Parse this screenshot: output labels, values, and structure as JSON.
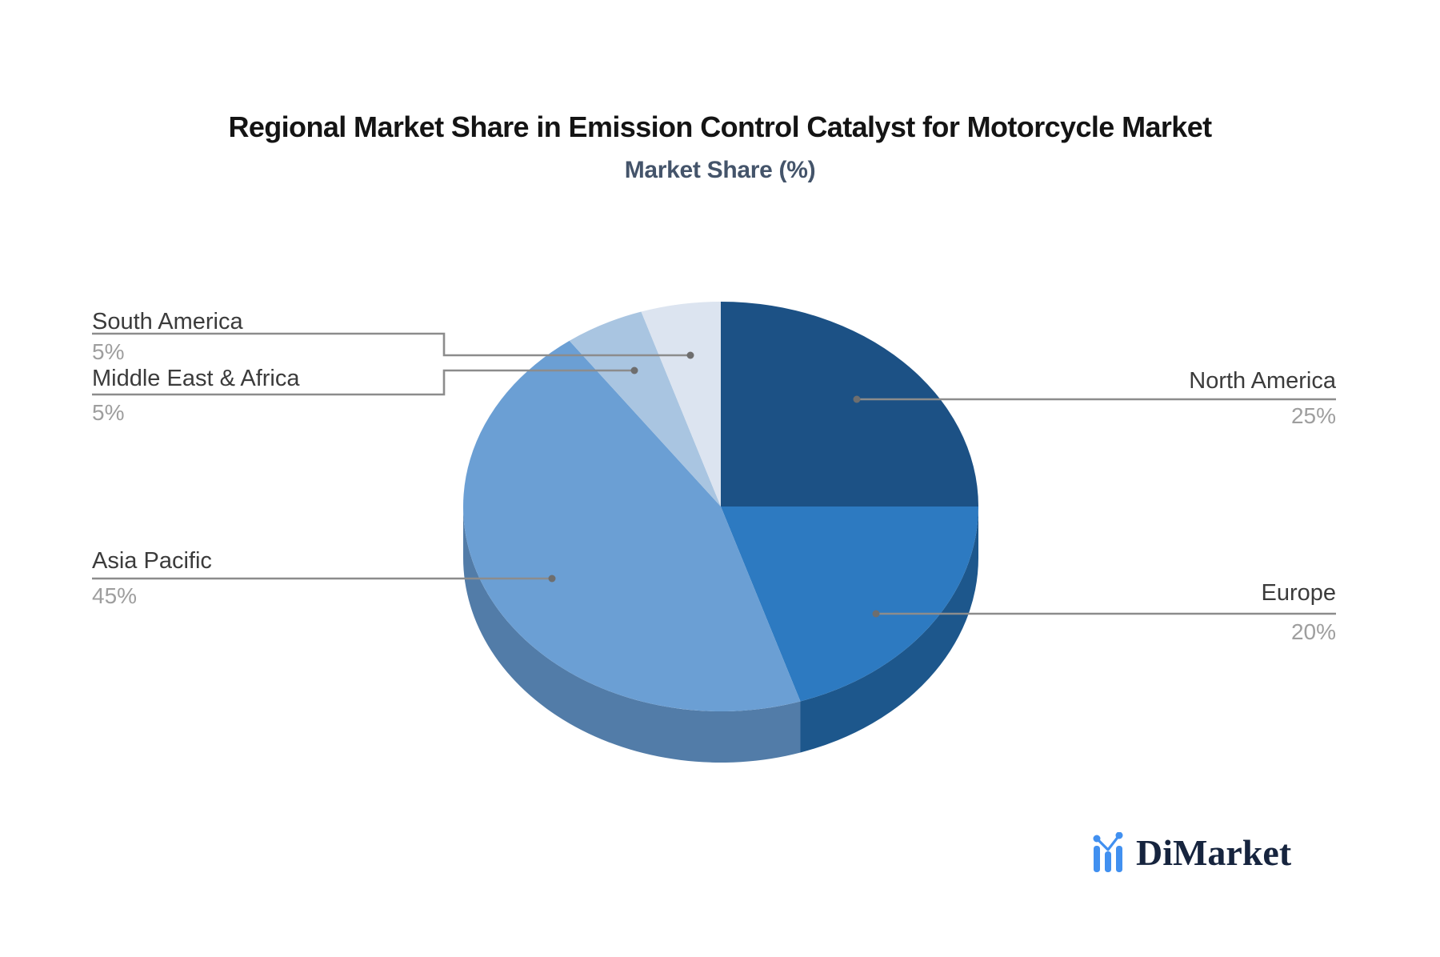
{
  "chart_data": {
    "type": "pie",
    "title": "Regional Market Share in Emission Control Catalyst for Motorcycle Market",
    "subtitle": "Market Share (%)",
    "unit": "%",
    "start_angle_deg": 0,
    "clockwise": true,
    "style": "3d-pie-with-callout-labels",
    "legend_position": "none",
    "categories": [
      "North America",
      "Europe",
      "Asia Pacific",
      "Middle East & Africa",
      "South America"
    ],
    "values": [
      25,
      20,
      45,
      5,
      5
    ],
    "slices": [
      {
        "label": "North America",
        "value": 25,
        "pct_label": "25%",
        "color": "#1c5185",
        "label_side": "right"
      },
      {
        "label": "Europe",
        "value": 20,
        "pct_label": "20%",
        "color": "#2d7ac1",
        "side_color": "#1d578c",
        "label_side": "right"
      },
      {
        "label": "Asia Pacific",
        "value": 45,
        "pct_label": "45%",
        "color": "#6b9fd4",
        "side_color": "#527ca8",
        "label_side": "left"
      },
      {
        "label": "Middle East & Africa",
        "value": 5,
        "pct_label": "5%",
        "color": "#a9c5e1",
        "label_side": "left"
      },
      {
        "label": "South America",
        "value": 5,
        "pct_label": "5%",
        "color": "#dce4f0",
        "label_side": "left"
      }
    ]
  },
  "connector_color": "#8c8c8c",
  "dot_color": "#6e6e6e",
  "logo": {
    "text": "DiMarket",
    "icon": "bar-line-chart-icon",
    "icon_color": "#4190f0",
    "text_color": "#16243e"
  }
}
